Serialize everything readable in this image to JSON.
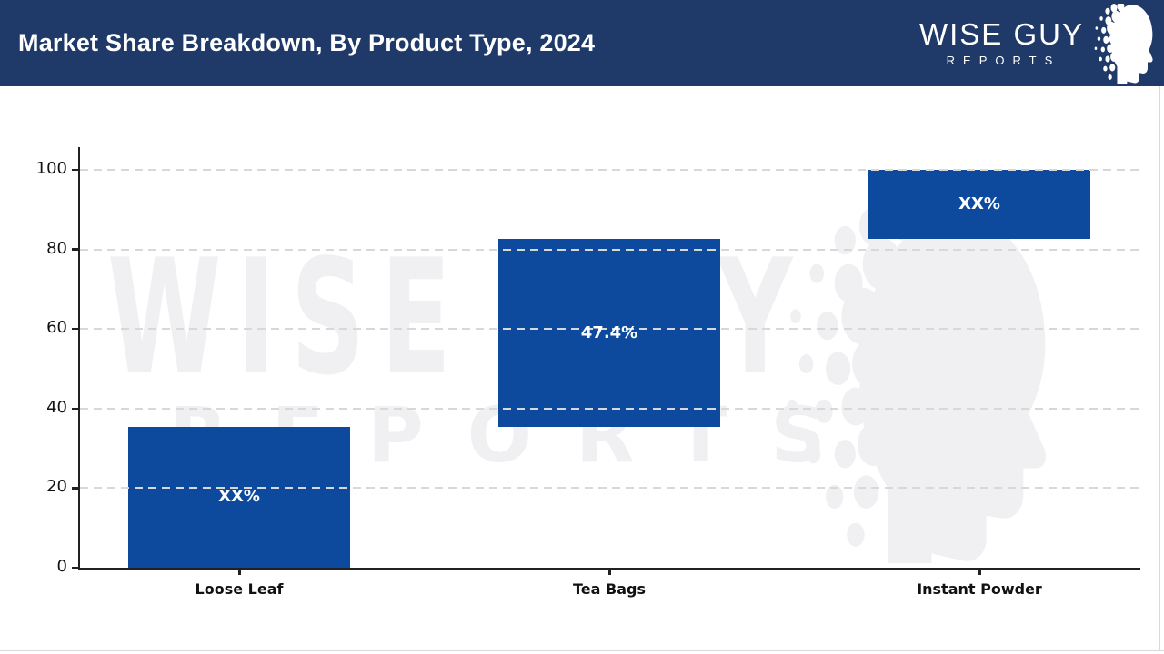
{
  "header": {
    "title": "Market Share Breakdown, By Product Type, 2024",
    "logo": {
      "line1": "WISE GUY",
      "line2": "REPORTS"
    }
  },
  "watermark": {
    "line1": "WISE GUY",
    "line2": "REPORTS"
  },
  "colors": {
    "header_bg": "#1F3A68",
    "bar": "#0D4A9E",
    "grid": "#D8D8D8",
    "axis": "#212121",
    "watermark": "#F0F0F2",
    "bar_label": "#FFFFFF"
  },
  "chart_data": {
    "type": "bar",
    "subtype": "waterfall",
    "title": "Market Share Breakdown, By Product Type, 2024",
    "categories": [
      "Loose Leaf",
      "Tea Bags",
      "Instant Powder"
    ],
    "bars": [
      {
        "category": "Loose Leaf",
        "start": 0,
        "end": 35.3,
        "label": "XX%"
      },
      {
        "category": "Tea Bags",
        "start": 35.3,
        "end": 82.7,
        "label": "47.4%"
      },
      {
        "category": "Instant Powder",
        "start": 82.7,
        "end": 100,
        "label": "XX%"
      }
    ],
    "xlabel": "",
    "ylabel": "",
    "ylim": [
      0,
      100
    ],
    "yticks": [
      0,
      20,
      40,
      60,
      80,
      100
    ],
    "grid": "horizontal dashed, drawn over bars",
    "legend": "none",
    "bar_color": "#0D4A9E",
    "label_color": "#FFFFFF"
  }
}
